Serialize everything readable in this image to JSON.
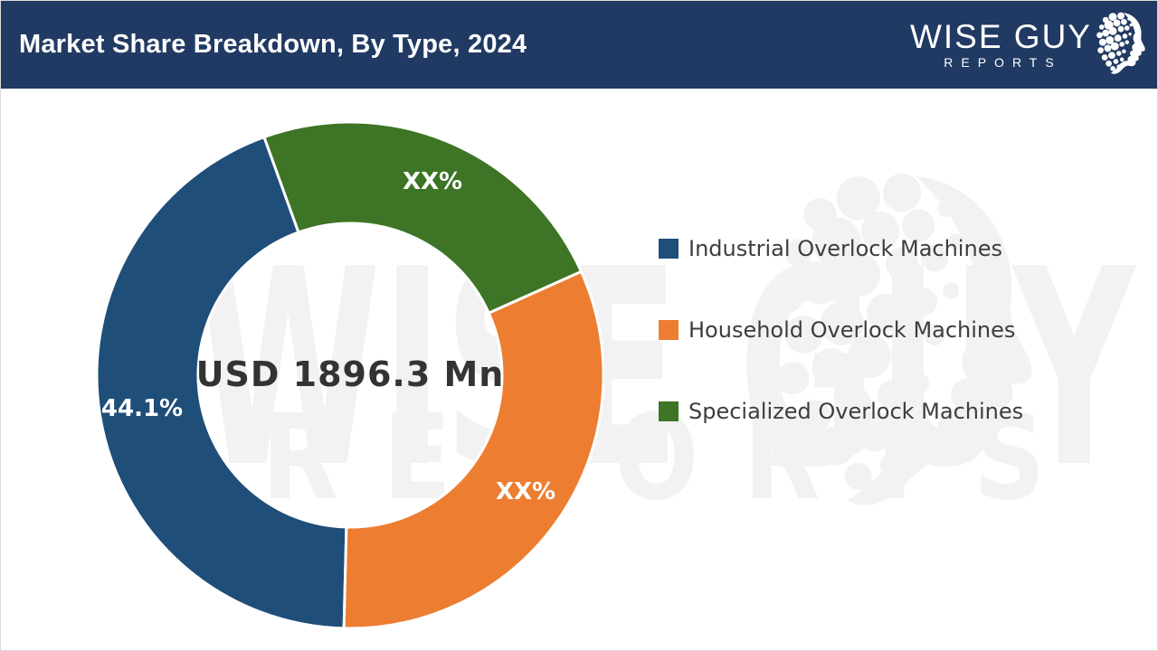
{
  "header": {
    "title": "Market Share Breakdown, By Type, 2024",
    "background_color": "#213A63",
    "logo": {
      "wordmark": "WISE GUY",
      "subtitle": "REPORTS"
    }
  },
  "watermark": {
    "line1": "WISE GUY",
    "line2": "REPORTS"
  },
  "chart_data": {
    "type": "pie",
    "subtype": "donut",
    "title": "Market Share Breakdown, By Type, 2024",
    "center_label": "USD 1896.3 Mn",
    "start_angle_deg": 181.4,
    "legend_position": "right",
    "segments": [
      {
        "id": "industrial",
        "name": "Industrial Overlock Machines",
        "display_label": "44.1%",
        "value_pct": 44.1,
        "color": "#1F4E79"
      },
      {
        "id": "specialized",
        "name": "Specialized Overlock Machines",
        "display_label": "XX%",
        "value_pct": 23.8,
        "color": "#3E7425"
      },
      {
        "id": "household",
        "name": "Household Overlock Machines",
        "display_label": "XX%",
        "value_pct": 32.1,
        "color": "#ED7D31"
      }
    ]
  },
  "legend": {
    "items": [
      {
        "label": "Industrial Overlock Machines",
        "color": "#1F4E79"
      },
      {
        "label": "Household Overlock Machines",
        "color": "#ED7D31"
      },
      {
        "label": "Specialized Overlock Machines",
        "color": "#3E7425"
      }
    ]
  }
}
